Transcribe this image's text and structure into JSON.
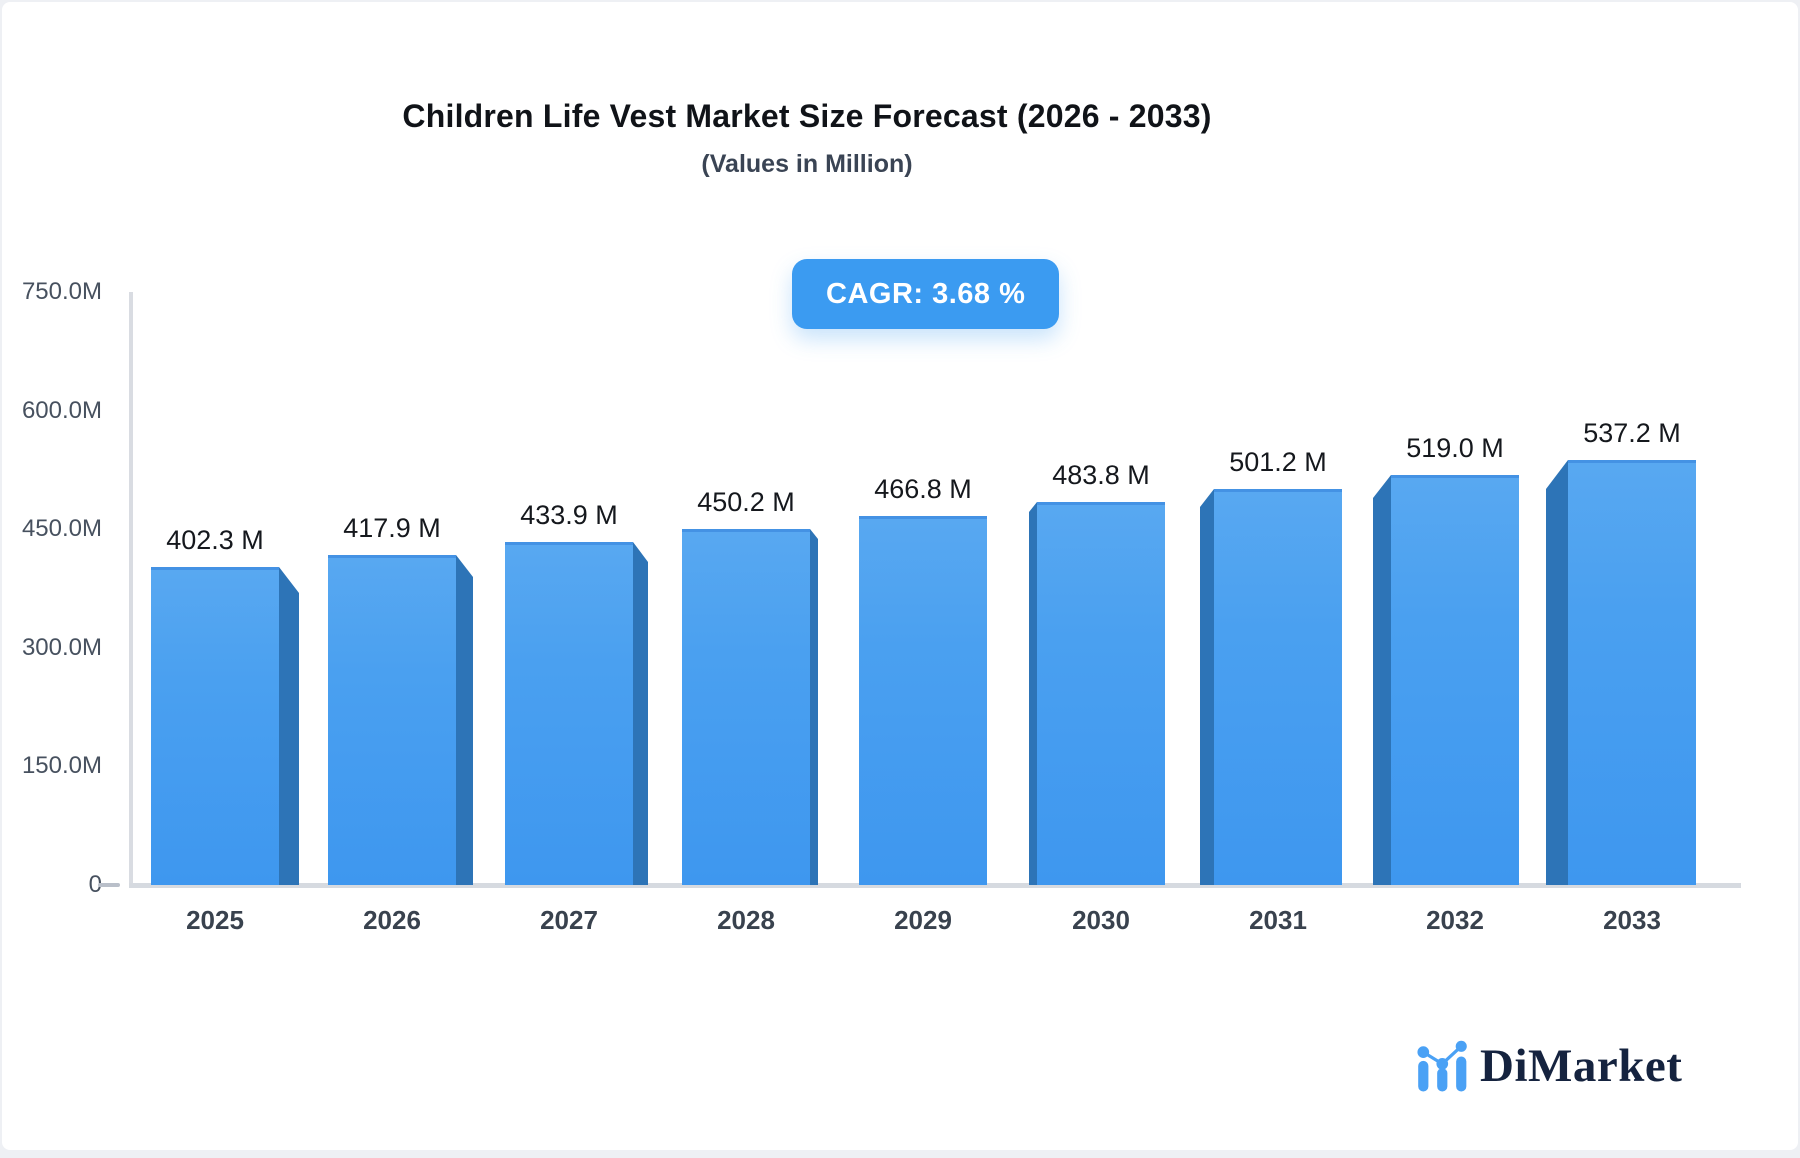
{
  "header": {
    "title": "Children Life Vest Market Size Forecast (2026 - 2033)",
    "subtitle": "(Values in Million)",
    "cagr_label": "CAGR: 3.68 %"
  },
  "chart_data": {
    "type": "bar",
    "title": "Children Life Vest Market Size Forecast (2026 - 2033)",
    "subtitle": "(Values in Million)",
    "unit": "Million",
    "cagr_percent": 3.68,
    "categories": [
      "2025",
      "2026",
      "2027",
      "2028",
      "2029",
      "2030",
      "2031",
      "2032",
      "2033"
    ],
    "values": [
      402.3,
      417.9,
      433.9,
      450.2,
      466.8,
      483.8,
      501.2,
      519.0,
      537.2
    ],
    "value_labels": [
      "402.3 M",
      "417.9 M",
      "433.9 M",
      "450.2 M",
      "466.8 M",
      "483.8 M",
      "501.2 M",
      "519.0 M",
      "537.2 M"
    ],
    "y_ticks": [
      {
        "value": 750,
        "label": "750.0M"
      },
      {
        "value": 600,
        "label": "600.0M"
      },
      {
        "value": 450,
        "label": "450.0M"
      },
      {
        "value": 300,
        "label": "300.0M"
      },
      {
        "value": 150,
        "label": "150.0M"
      },
      {
        "value": 0,
        "label": "0"
      }
    ],
    "ylim": [
      0,
      750
    ],
    "grid": false,
    "legend": false,
    "style": "3d-bars-center-perspective",
    "colors": {
      "bar_front_top": "#58a8f1",
      "bar_front_bottom": "#3e97ef",
      "bar_side": "#2d74b7",
      "axis": "#d9dce2",
      "accent": "#3b9bf1"
    }
  },
  "branding": {
    "logo_text": "DiMarket",
    "logo_icon": "bar-chart-icon",
    "logo_text_color": "#15233f",
    "logo_icon_color": "#4aa1f5"
  }
}
